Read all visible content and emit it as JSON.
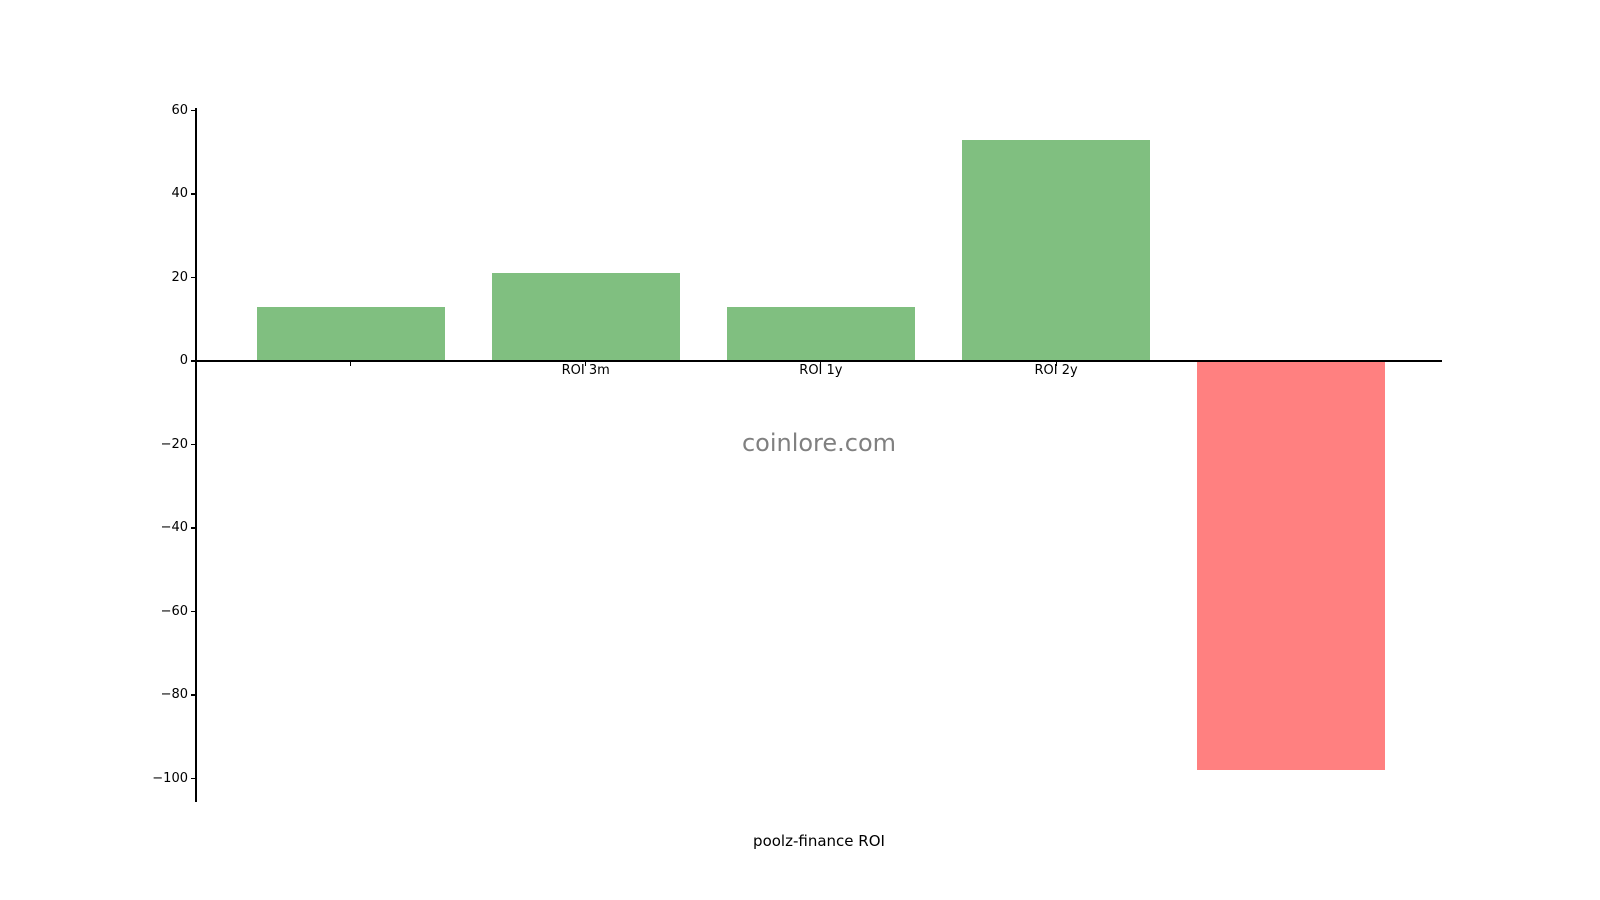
{
  "page": {
    "background": "#ffffff"
  },
  "chart_data": {
    "type": "bar",
    "title": "poolz-finance ROI",
    "watermark": "coinlore.com",
    "watermark_color": "#808080",
    "categories": [
      "",
      "ROI 3m",
      "ROI 1y",
      "ROI 2y",
      ""
    ],
    "values": [
      13,
      21,
      13,
      53,
      -98
    ],
    "bar_colors": [
      "#80bf80",
      "#80bf80",
      "#80bf80",
      "#80bf80",
      "#ff8080"
    ],
    "positive_color": "#80bf80",
    "negative_color": "#ff8080",
    "axis_color": "#000000",
    "xlabel": "",
    "ylabel": "",
    "ylim": [
      -105.5,
      60.5
    ],
    "grid": false,
    "legend_position": "none",
    "y_ticks": [
      {
        "v": 60,
        "label": "60"
      },
      {
        "v": 40,
        "label": "40"
      },
      {
        "v": 20,
        "label": "20"
      },
      {
        "v": 0,
        "label": "0"
      },
      {
        "v": -20,
        "label": "−20"
      },
      {
        "v": -40,
        "label": "−40"
      },
      {
        "v": -60,
        "label": "−60"
      },
      {
        "v": -80,
        "label": "−80"
      },
      {
        "v": -100,
        "label": "−100"
      }
    ]
  }
}
